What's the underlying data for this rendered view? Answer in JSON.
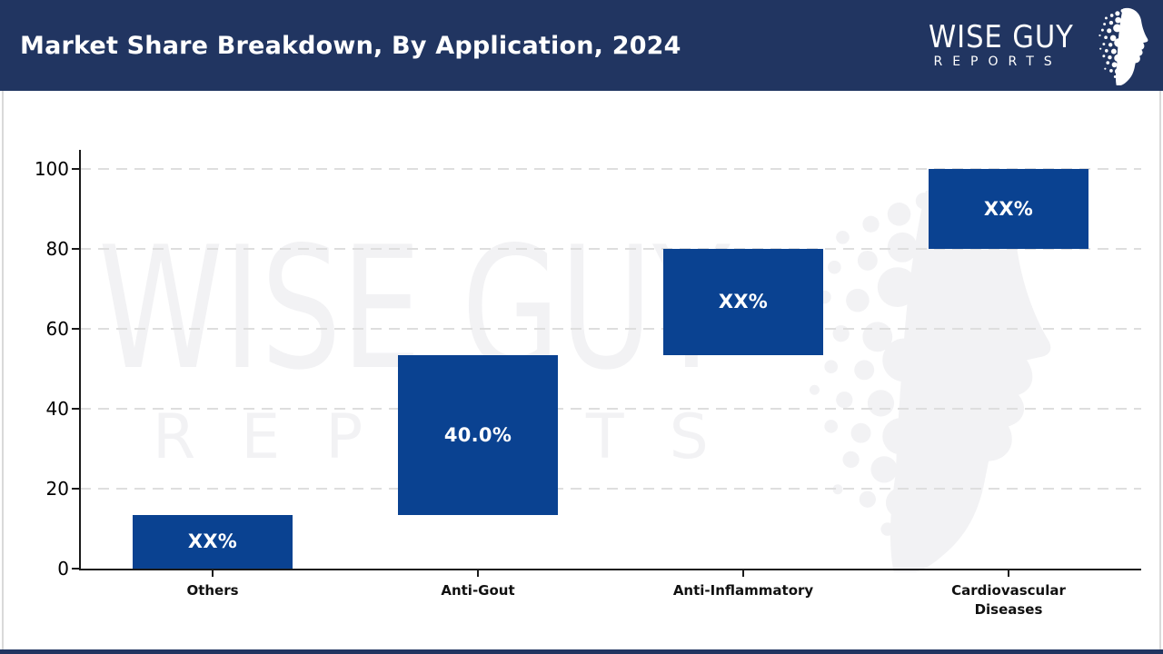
{
  "header": {
    "title": "Market Share Breakdown, By Application, 2024",
    "logo": {
      "line1": "WISE GUY",
      "line2": "REPORTS"
    }
  },
  "watermark": {
    "line1": "WISE GUY",
    "line2": "REPORTS"
  },
  "colors": {
    "header_bg": "#213561",
    "footer_bg": "#213561",
    "bar_fill": "#0a4291",
    "bar_label_text": "#ffffff",
    "gridline": "#dedede",
    "axis": "#1a1a1a",
    "tick_label": "#000000",
    "watermark": "#f2f2f4"
  },
  "chart_data": {
    "type": "bar",
    "subtype": "floating-waterfall-segments",
    "title": "Market Share Breakdown, By Application, 2024",
    "categories": [
      "Others",
      "Anti-Gout",
      "Anti-Inflammatory",
      "Cardiovascular Diseases"
    ],
    "bars": [
      {
        "category": "Others",
        "start": 0,
        "end": 13.5,
        "label": "XX%"
      },
      {
        "category": "Anti-Gout",
        "start": 13.5,
        "end": 53.5,
        "label": "40.0%"
      },
      {
        "category": "Anti-Inflammatory",
        "start": 53.5,
        "end": 80,
        "label": "XX%"
      },
      {
        "category": "Cardiovascular Diseases",
        "start": 80,
        "end": 100,
        "label": "XX%"
      }
    ],
    "xlabel": "",
    "ylabel": "",
    "yticks": [
      0,
      20,
      40,
      60,
      80,
      100
    ],
    "ylim": [
      0,
      105
    ],
    "grid": "horizontal-dashed",
    "legend": "none"
  }
}
